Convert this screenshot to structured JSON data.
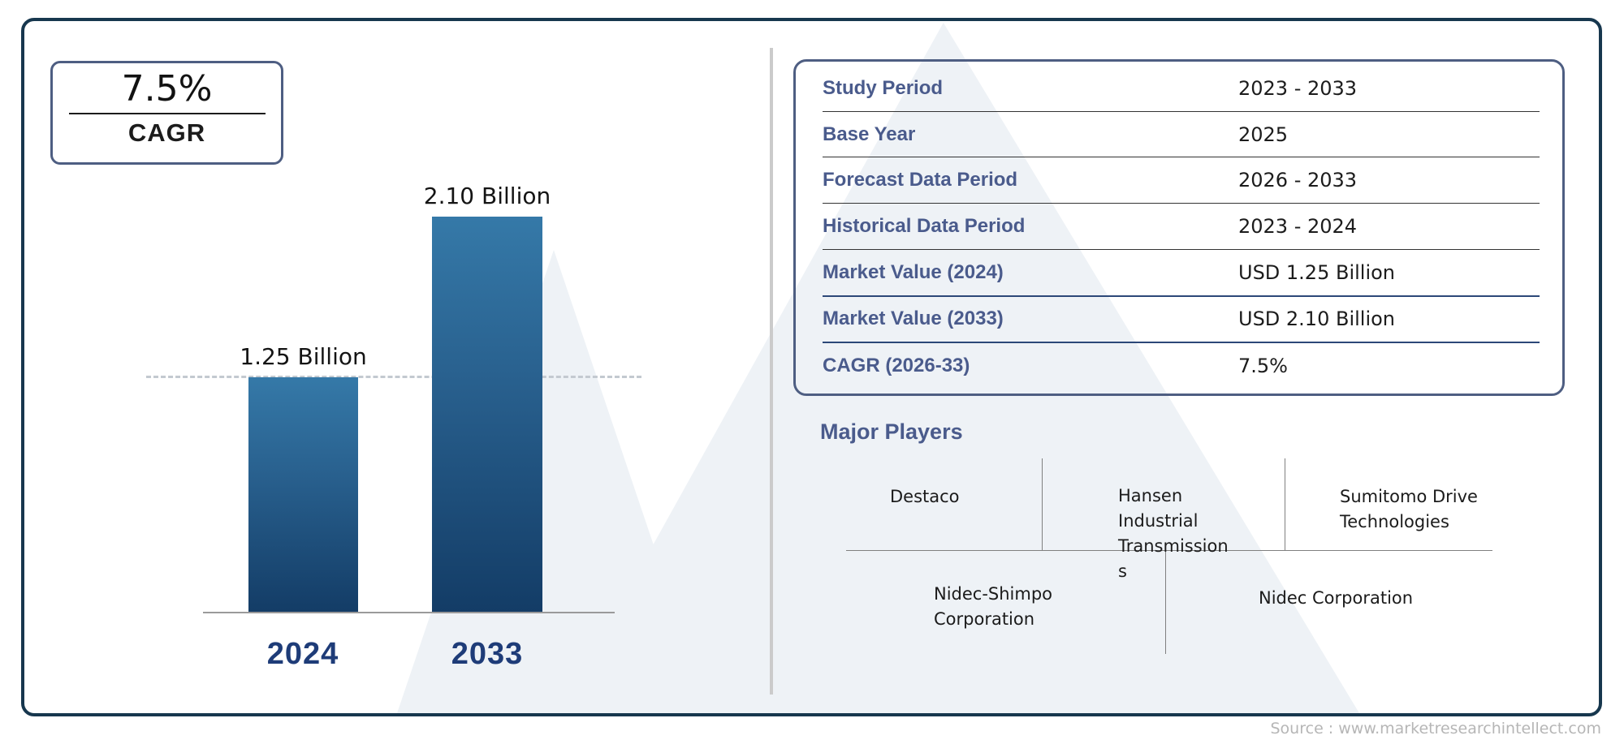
{
  "cagr_box": {
    "value": "7.5%",
    "label": "CAGR"
  },
  "chart_data": {
    "type": "bar",
    "categories": [
      "2024",
      "2033"
    ],
    "values": [
      1.25,
      2.1
    ],
    "value_labels": [
      "1.25 Billion",
      "2.10 Billion"
    ],
    "unit": "USD Billion",
    "reference_line_value": 1.25,
    "ylim": [
      0,
      2.3
    ],
    "grid": "off",
    "bar_color_top": "#3579a8",
    "bar_color_bottom": "#133c66"
  },
  "info_table": {
    "rows": [
      {
        "label": "Study Period",
        "value": "2023 - 2033"
      },
      {
        "label": "Base Year",
        "value": "2025"
      },
      {
        "label": "Forecast Data Period",
        "value": "2026 - 2033"
      },
      {
        "label": "Historical Data Period",
        "value": "2023 - 2024"
      },
      {
        "label": "Market Value (2024)",
        "value": "USD 1.25 Billion"
      },
      {
        "label": "Market Value (2033)",
        "value": "USD 2.10 Billion"
      },
      {
        "label": "CAGR (2026-33)",
        "value": "7.5%"
      }
    ]
  },
  "major_players": {
    "heading": "Major Players",
    "players": [
      "Destaco",
      "Hansen Industrial Transmissions",
      "Sumitomo Drive Technologies",
      "Nidec-Shimpo Corporation",
      "Nidec Corporation"
    ]
  },
  "source": {
    "text": "Source : www.marketresearchintellect.com"
  },
  "colors": {
    "frame_border": "#17374e",
    "accent_border": "#4e5e82",
    "label_blue": "#4a5b8c",
    "year_navy": "#1e3c78",
    "watermark": "#eef2f6",
    "divider_gray": "#cbcbcb"
  }
}
